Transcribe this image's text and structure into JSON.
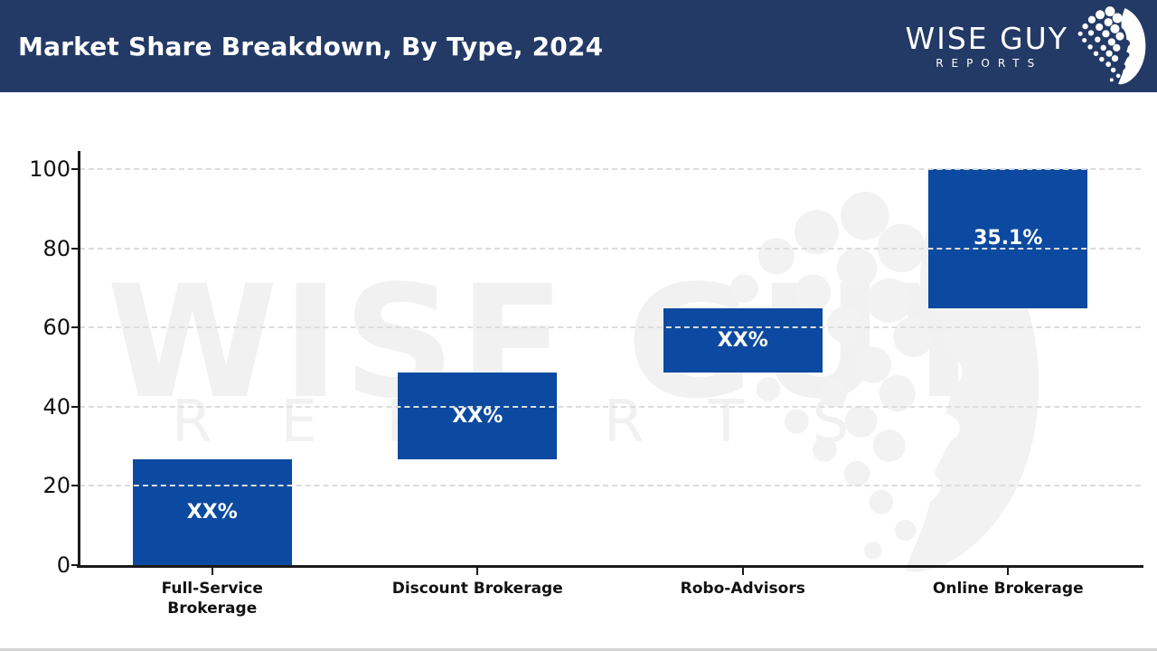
{
  "header": {
    "title": "Market Share Breakdown, By Type, 2024",
    "logo": {
      "line1": "WISE GUY",
      "line2": "REPORTS"
    }
  },
  "watermark": {
    "line1": "WISE GUY",
    "line2": "REPORTS"
  },
  "chart_data": {
    "type": "bar",
    "subtype": "waterfall",
    "title": "Market Share Breakdown, By Type, 2024",
    "categories": [
      "Full-Service\nBrokerage",
      "Discount Brokerage",
      "Robo-Advisors",
      "Online Brokerage"
    ],
    "segments": [
      {
        "category": "Full-Service Brokerage",
        "start": 0,
        "end": 26.6,
        "value": 26.6,
        "label": "XX%"
      },
      {
        "category": "Discount Brokerage",
        "start": 26.6,
        "end": 48.6,
        "value": 22.0,
        "label": "XX%"
      },
      {
        "category": "Robo-Advisors",
        "start": 48.6,
        "end": 64.9,
        "value": 16.3,
        "label": "XX%"
      },
      {
        "category": "Online Brokerage",
        "start": 64.9,
        "end": 100,
        "value": 35.1,
        "label": "35.1%"
      }
    ],
    "y_ticks": [
      0,
      20,
      40,
      60,
      80,
      100
    ],
    "ylim": [
      0,
      104.5
    ],
    "xlabel": "",
    "ylabel": "",
    "grid": true,
    "grid_style": "dashed",
    "legend": false,
    "bar_color": "#0b4aa0"
  },
  "colors": {
    "header_navy": "#233a66",
    "bar_blue": "#0b4aa0",
    "gridline_gray": "#dcdcdc",
    "watermark_gray": "#f1f1f1"
  }
}
